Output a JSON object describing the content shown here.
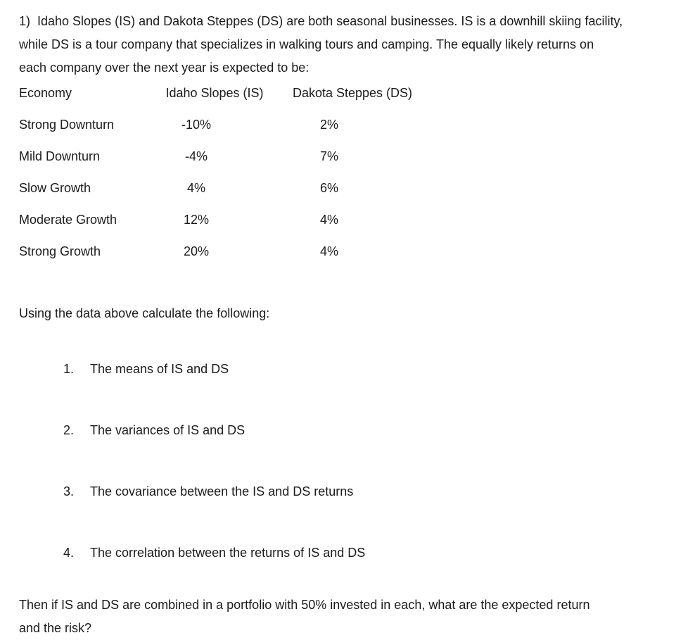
{
  "page": {
    "background": "#ffffff",
    "text_color": "#1b1b1b"
  },
  "problem": {
    "intro_lines": [
      "1)  Idaho Slopes (IS) and Dakota Steppes (DS) are both seasonal businesses. IS is a downhill skiing facility,",
      "while DS is a tour company that specializes in walking tours and camping. The equally likely returns on",
      "each company over the next year is expected to be:"
    ]
  },
  "returns_table": {
    "columns": [
      "Economy",
      "Idaho Slopes (IS)",
      "Dakota Steppes (DS)"
    ],
    "rows": [
      {
        "economy": "Strong Downturn",
        "is": "-10%",
        "ds": "2%"
      },
      {
        "economy": "Mild Downturn",
        "is": "-4%",
        "ds": "7%"
      },
      {
        "economy": "Slow Growth",
        "is": "4%",
        "ds": "6%"
      },
      {
        "economy": "Moderate Growth",
        "is": "12%",
        "ds": "4%"
      },
      {
        "economy": "Strong Growth",
        "is": "20%",
        "ds": "4%"
      }
    ]
  },
  "instructions": {
    "lead": "Using the data above calculate the following:",
    "items": [
      {
        "number": "1.",
        "text": "The means of IS and DS"
      },
      {
        "number": "2.",
        "text": "The variances of IS and DS"
      },
      {
        "number": "3.",
        "text": "The covariance between the IS and DS returns"
      },
      {
        "number": "4.",
        "text": "The correlation between the returns of IS and DS"
      }
    ]
  },
  "closing": {
    "lines": [
      "Then if IS and DS are combined in a portfolio with 50% invested in each, what are the expected return",
      "and the risk?"
    ]
  }
}
